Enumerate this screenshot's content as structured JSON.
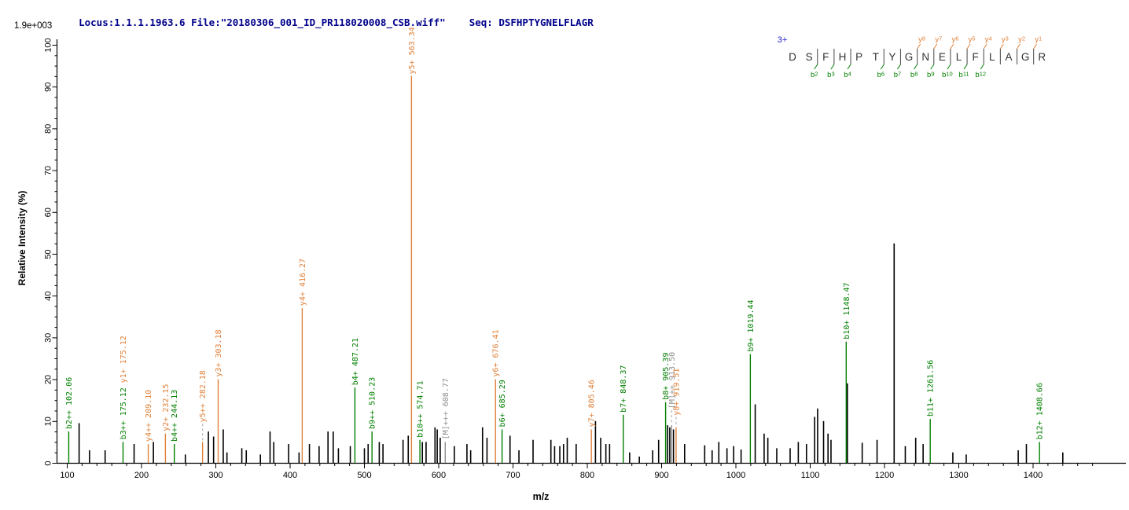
{
  "header": {
    "locus_file": "Locus:1.1.1.1963.6 File:\"20180306_001_ID_PR118020008_CSB.wiff\"",
    "seq_label": "Seq: DSFHPTYGNELFLAGR",
    "intensity_scale": "1.9e+003"
  },
  "colors": {
    "b_ion": "#008000",
    "y_ion": "#e0813a",
    "precursor": "#8f8f8f",
    "peak": "#000000",
    "axis": "#000000",
    "leader": "#b4b4b4",
    "header_text": "#00008b",
    "charge_label": "#2222cc",
    "residue_text": "#333333",
    "boundary_line": "#555555"
  },
  "peptide": {
    "charge_label": "3+",
    "residues": [
      "D",
      "S",
      "F",
      "H",
      "P",
      "T",
      "Y",
      "G",
      "N",
      "E",
      "L",
      "F",
      "L",
      "A",
      "G",
      "R"
    ],
    "b_markers": [
      {
        "id": "b2",
        "after": 1
      },
      {
        "id": "b3",
        "after": 2
      },
      {
        "id": "b4",
        "after": 3
      },
      {
        "id": "b6",
        "after": 5
      },
      {
        "id": "b7",
        "after": 6
      },
      {
        "id": "b8",
        "after": 7
      },
      {
        "id": "b9",
        "after": 8
      },
      {
        "id": "b10",
        "after": 9
      },
      {
        "id": "b11",
        "after": 10
      },
      {
        "id": "b12",
        "after": 11
      }
    ],
    "y_markers": [
      {
        "id": "y8",
        "after": 7
      },
      {
        "id": "y7",
        "after": 8
      },
      {
        "id": "y6",
        "after": 9
      },
      {
        "id": "y5",
        "after": 10
      },
      {
        "id": "y4",
        "after": 11
      },
      {
        "id": "y3",
        "after": 12
      },
      {
        "id": "y2",
        "after": 13
      },
      {
        "id": "y1",
        "after": 14
      }
    ]
  },
  "chart_data": {
    "type": "bar",
    "subtype": "ms2-fragment-spectrum",
    "title": "",
    "xlabel": "m/z",
    "ylabel": "Relative  Intensity (%)",
    "xlim": [
      100,
      1480
    ],
    "ylim": [
      0,
      100
    ],
    "x_major_step": 100,
    "x_minor_step": 20,
    "x_label_max": 1400,
    "y_major_step": 10,
    "y_minor_step": 2.5,
    "grid": false,
    "labeled_peaks": [
      {
        "label": "b2++ 102.06",
        "mz": 102.06,
        "intensity": 7.5,
        "ion": "b"
      },
      {
        "label": "b3++ 175.12",
        "mz": 175.12,
        "intensity": 5,
        "ion": "b"
      },
      {
        "label": "y1+ 175.12",
        "mz": 175.12,
        "intensity": 5,
        "ion": "y",
        "label_lift": 72,
        "no_line": true
      },
      {
        "label": "y4++ 209.10",
        "mz": 209.1,
        "intensity": 4.5,
        "ion": "y"
      },
      {
        "label": "y2+ 232.15",
        "mz": 232.15,
        "intensity": 7,
        "ion": "y"
      },
      {
        "label": "b4++ 244.13",
        "mz": 244.13,
        "intensity": 4.5,
        "ion": "b"
      },
      {
        "label": "y5++ 282.18",
        "mz": 282.18,
        "intensity": 5,
        "ion": "y",
        "label_lift": 22,
        "leader_dashed": true
      },
      {
        "label": "y3+ 303.18",
        "mz": 303.18,
        "intensity": 20,
        "ion": "y"
      },
      {
        "label": "y4+ 416.27",
        "mz": 416.27,
        "intensity": 37,
        "ion": "y"
      },
      {
        "label": "b4+ 487.21",
        "mz": 487.21,
        "intensity": 18,
        "ion": "b"
      },
      {
        "label": "b9++ 510.23",
        "mz": 510.23,
        "intensity": 7.5,
        "ion": "b"
      },
      {
        "label": "y5+ 563.34",
        "mz": 563.34,
        "intensity": 100,
        "ion": "y"
      },
      {
        "label": "b10++ 574.71",
        "mz": 574.71,
        "intensity": 5.5,
        "ion": "b"
      },
      {
        "label": "[M]+++ 608.77",
        "mz": 608.77,
        "intensity": 5,
        "ion": "M"
      },
      {
        "label": "y6+ 676.41",
        "mz": 676.41,
        "intensity": 20,
        "ion": "y"
      },
      {
        "label": "b6+ 685.29",
        "mz": 685.29,
        "intensity": 8,
        "ion": "b"
      },
      {
        "label": "y7+ 805.46",
        "mz": 805.46,
        "intensity": 8,
        "ion": "y"
      },
      {
        "label": "b7+ 848.37",
        "mz": 848.37,
        "intensity": 11.5,
        "ion": "b"
      },
      {
        "label": "b8+ 905.39",
        "mz": 905.39,
        "intensity": 14.5,
        "ion": "b"
      },
      {
        "label": "[M]++ 913.50",
        "mz": 913.5,
        "intensity": 9,
        "ion": "M",
        "label_lift": 18,
        "leader_dashed": true
      },
      {
        "label": "y8+ 919.51",
        "mz": 919.51,
        "intensity": 8.5,
        "ion": "y",
        "label_lift": 12,
        "leader_dashed": true
      },
      {
        "label": "b9+ 1019.44",
        "mz": 1019.44,
        "intensity": 26,
        "ion": "b"
      },
      {
        "label": "b10+ 1148.47",
        "mz": 1148.47,
        "intensity": 29,
        "ion": "b"
      },
      {
        "label": "b11+ 1261.56",
        "mz": 1261.56,
        "intensity": 10.5,
        "ion": "b"
      },
      {
        "label": "b12+ 1408.66",
        "mz": 1408.66,
        "intensity": 5,
        "ion": "b"
      }
    ],
    "unlabeled_peaks": [
      [
        116,
        9.5
      ],
      [
        130,
        3
      ],
      [
        151,
        3
      ],
      [
        190,
        4.5
      ],
      [
        216,
        5
      ],
      [
        259,
        2
      ],
      [
        290,
        7.5
      ],
      [
        297,
        6.3
      ],
      [
        310,
        8
      ],
      [
        315,
        2.5
      ],
      [
        335,
        3.5
      ],
      [
        341,
        3
      ],
      [
        360,
        2
      ],
      [
        373,
        7.5
      ],
      [
        378,
        5
      ],
      [
        398,
        4.5
      ],
      [
        412,
        2.5
      ],
      [
        426,
        4.5
      ],
      [
        439,
        4
      ],
      [
        451,
        7.5
      ],
      [
        458,
        7.5
      ],
      [
        465,
        3.5
      ],
      [
        481,
        4
      ],
      [
        500,
        3.5
      ],
      [
        505,
        4.5
      ],
      [
        520,
        5
      ],
      [
        525,
        4.5
      ],
      [
        552,
        5.5
      ],
      [
        559,
        6.5
      ],
      [
        578,
        5
      ],
      [
        583,
        5
      ],
      [
        595,
        8.5
      ],
      [
        598,
        8
      ],
      [
        602,
        6
      ],
      [
        621,
        4
      ],
      [
        638,
        4.5
      ],
      [
        643,
        3
      ],
      [
        659,
        8.5
      ],
      [
        665,
        6
      ],
      [
        696,
        6.5
      ],
      [
        708,
        3
      ],
      [
        727,
        5.5
      ],
      [
        751,
        5.5
      ],
      [
        756,
        4
      ],
      [
        763,
        4
      ],
      [
        768,
        4.5
      ],
      [
        773,
        6
      ],
      [
        785,
        4.5
      ],
      [
        811,
        10
      ],
      [
        818,
        6
      ],
      [
        825,
        4.5
      ],
      [
        830,
        4.5
      ],
      [
        857,
        2.5
      ],
      [
        870,
        1.5
      ],
      [
        888,
        3
      ],
      [
        896,
        5.5
      ],
      [
        908,
        9
      ],
      [
        911,
        8.5
      ],
      [
        916,
        8
      ],
      [
        931,
        4.5
      ],
      [
        958,
        4.2
      ],
      [
        968,
        3
      ],
      [
        977,
        5
      ],
      [
        988,
        3.5
      ],
      [
        997,
        4
      ],
      [
        1007,
        3.2
      ],
      [
        1026,
        14
      ],
      [
        1038,
        7
      ],
      [
        1043,
        6
      ],
      [
        1055,
        3.5
      ],
      [
        1073,
        3.5
      ],
      [
        1084,
        5
      ],
      [
        1095,
        4.5
      ],
      [
        1106,
        11
      ],
      [
        1110,
        13
      ],
      [
        1118,
        10
      ],
      [
        1124,
        7
      ],
      [
        1128,
        5.5
      ],
      [
        1150,
        19
      ],
      [
        1170,
        4.8
      ],
      [
        1190,
        5.5
      ],
      [
        1213,
        52.5
      ],
      [
        1228,
        4
      ],
      [
        1242,
        6
      ],
      [
        1252,
        4.5
      ],
      [
        1292,
        2.5
      ],
      [
        1310,
        2
      ],
      [
        1380,
        3
      ],
      [
        1391,
        4.5
      ],
      [
        1440,
        2.5
      ]
    ]
  }
}
